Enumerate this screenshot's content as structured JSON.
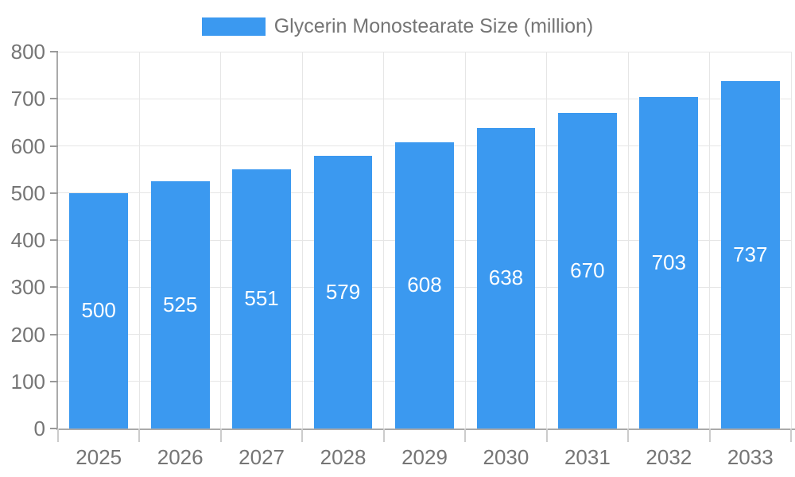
{
  "chart_data": {
    "type": "bar",
    "title": "Glycerin Monostearate Size (million)",
    "categories": [
      "2025",
      "2026",
      "2027",
      "2028",
      "2029",
      "2030",
      "2031",
      "2032",
      "2033"
    ],
    "series": [
      {
        "name": "Glycerin Monostearate Size (million)",
        "values": [
          500,
          525,
          551,
          579,
          608,
          638,
          670,
          703,
          737
        ]
      }
    ],
    "xlabel": "",
    "ylabel": "",
    "ylim": [
      0,
      800
    ],
    "yticks": [
      0,
      100,
      200,
      300,
      400,
      500,
      600,
      700,
      800
    ],
    "grid": true,
    "legend_position": "top",
    "value_labels_inside_bars": true
  },
  "legend": {
    "label": "Glycerin Monostearate Size (million)"
  },
  "colors": {
    "bar": "#3B99F0",
    "grid": "#e6e6e6",
    "axis": "#aaaaaa",
    "y_tick": "#999999",
    "x_tick": "#cccccc",
    "tick_label": "#757575",
    "legend_label": "#757575",
    "value_label": "#ffffff",
    "background": "#ffffff"
  }
}
